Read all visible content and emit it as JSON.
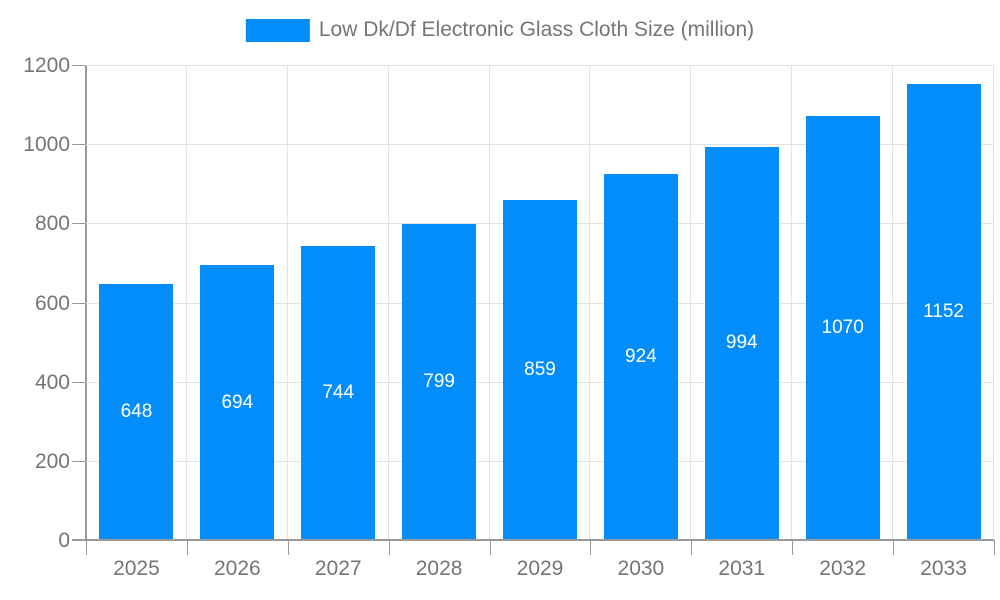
{
  "chart_data": {
    "type": "bar",
    "title": "Low Dk/Df Electronic Glass Cloth Size (million)",
    "legend_entries": [
      "Low Dk/Df Electronic Glass Cloth Size (million)"
    ],
    "legend_position": "top-center",
    "categories": [
      "2025",
      "2026",
      "2027",
      "2028",
      "2029",
      "2030",
      "2031",
      "2032",
      "2033"
    ],
    "values": [
      648,
      694,
      744,
      799,
      859,
      924,
      994,
      1070,
      1152
    ],
    "value_labels_inside_bars": true,
    "xlabel": "",
    "ylabel": "",
    "ylim": [
      0,
      1200
    ],
    "yticks": [
      0,
      200,
      400,
      600,
      800,
      1000,
      1200
    ],
    "grid": true,
    "colors": {
      "bar": "#038DFA",
      "grid": "#E3E3E3",
      "axis_line": "#999999",
      "axis_text": "#757575",
      "value_text": "#FFFFFF"
    }
  }
}
